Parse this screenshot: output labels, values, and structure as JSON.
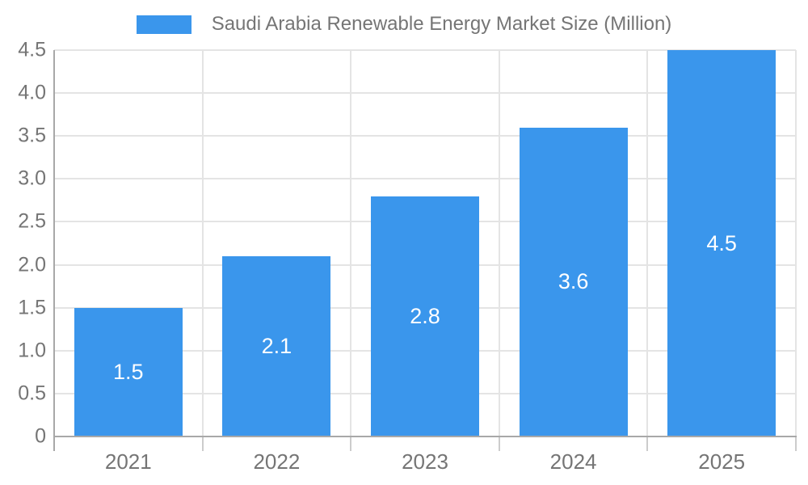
{
  "chart_data": {
    "type": "bar",
    "title": "Saudi Arabia Renewable Energy Market Size (Million)",
    "categories": [
      "2021",
      "2022",
      "2023",
      "2024",
      "2025"
    ],
    "values": [
      1.5,
      2.1,
      2.8,
      3.6,
      4.5
    ],
    "value_labels": [
      "1.5",
      "2.1",
      "2.8",
      "3.6",
      "4.5"
    ],
    "xlabel": "",
    "ylabel": "",
    "ylim": [
      0,
      4.5
    ],
    "ytick_step": 0.5,
    "yticks": [
      "0",
      "0.5",
      "1.0",
      "1.5",
      "2.0",
      "2.5",
      "3.0",
      "3.5",
      "4.0",
      "4.5"
    ],
    "grid": true,
    "legend_position": "top",
    "colors": {
      "bar": "#3A96EC",
      "bar_label": "#FFFFFF",
      "axis_text": "#757575",
      "axis_line": "#A8A8A8",
      "gridline": "#E4E4E4",
      "tick": "#CCCCCC",
      "background": "#FFFFFF"
    }
  }
}
